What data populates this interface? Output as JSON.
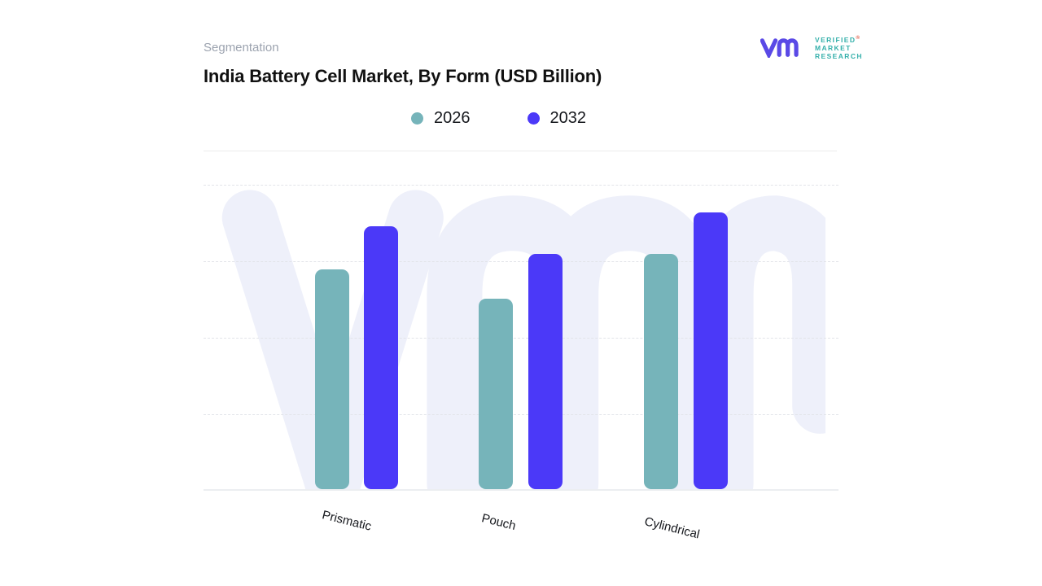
{
  "header": {
    "eyebrow": "Segmentation",
    "title": "India Battery Cell Market, By Form (USD Billion)"
  },
  "logo": {
    "monogram": "vm",
    "line1": "VERIFIED",
    "line2": "MARKET",
    "line3": "RESEARCH",
    "registered_mark": "®",
    "text_color": "#35b0ab",
    "mark_color": "#5a49e6"
  },
  "legend": [
    {
      "label": "2026",
      "color": "#76b4ba"
    },
    {
      "label": "2032",
      "color": "#4b39f8"
    }
  ],
  "watermark": {
    "monogram": "vmr",
    "color": "#eef0fa"
  },
  "chart_data": {
    "type": "bar",
    "title": "India Battery Cell Market, By Form (USD Billion)",
    "categories": [
      "Prismatic",
      "Pouch",
      "Cylindrical"
    ],
    "series": [
      {
        "name": "2026",
        "color": "#76b4ba",
        "values": [
          2.87,
          2.49,
          3.07
        ]
      },
      {
        "name": "2032",
        "color": "#4b39f8",
        "values": [
          3.44,
          3.07,
          3.62
        ]
      }
    ],
    "xlabel": "",
    "ylabel": "",
    "ylim": [
      0,
      4
    ],
    "yticks_labeled": false,
    "grid": "horizontal dashed, 4 unlabeled levels",
    "legend_position": "top-center",
    "note": "values in USD Billion estimated from unlabeled gridline units"
  }
}
